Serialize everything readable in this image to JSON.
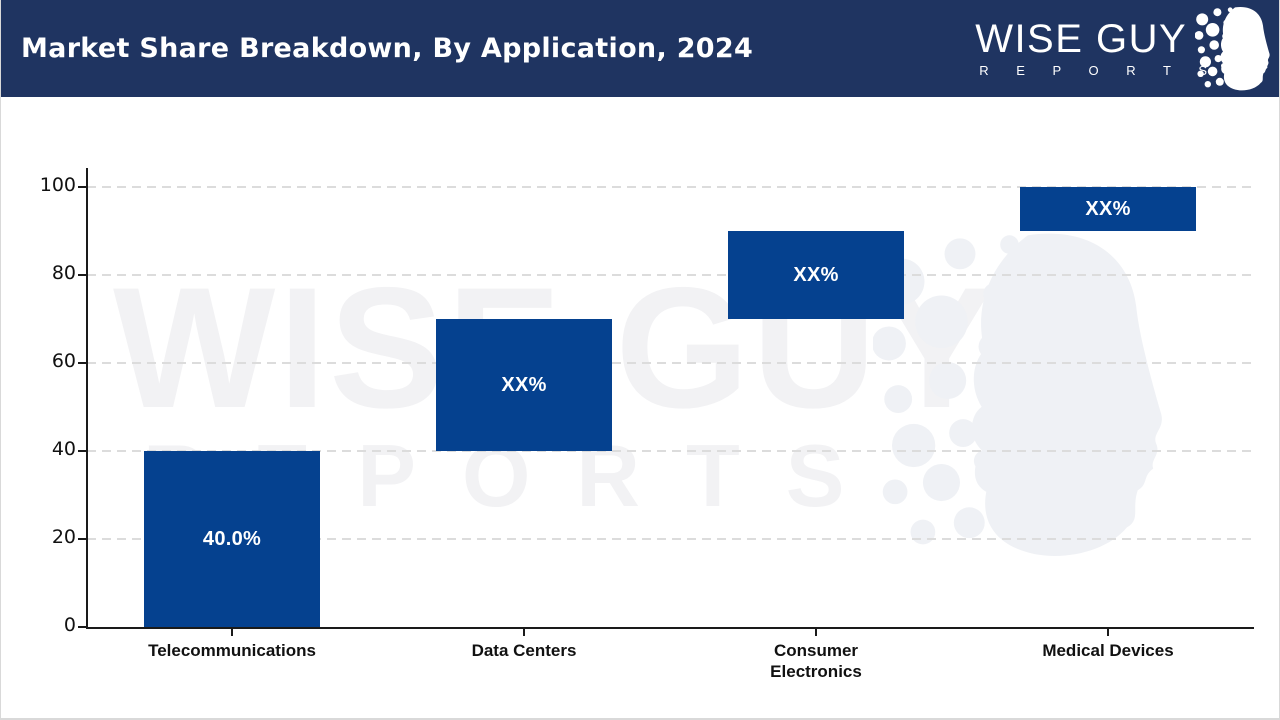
{
  "header": {
    "title": "Market Share Breakdown, By Application, 2024",
    "logo": {
      "name": "WISE GUY",
      "sub": "REPORTS"
    }
  },
  "watermark": {
    "line1": "WISE GUY",
    "line2": "REPORTS"
  },
  "colors": {
    "header_bg": "#1f3461",
    "bar": "#05418f",
    "grid": "#dcdcdc",
    "axis": "#1a1a1a",
    "watermark": "#f2f2f4",
    "watermark_face": "#eff1f5",
    "value_label": "#ffffff",
    "category_label": "#111111"
  },
  "chart_data": {
    "type": "bar",
    "subtype": "waterfall",
    "title": "Market Share Breakdown, By Application, 2024",
    "categories": [
      "Telecommunications",
      "Data Centers",
      "Consumer Electronics",
      "Medical Devices"
    ],
    "category_label_lines": [
      [
        "Telecommunications"
      ],
      [
        "Data Centers"
      ],
      [
        "Consumer",
        "Electronics"
      ],
      [
        "Medical Devices"
      ]
    ],
    "segments": [
      {
        "category": "Telecommunications",
        "start": 0,
        "end": 40,
        "value": 40,
        "label": "40.0%"
      },
      {
        "category": "Data Centers",
        "start": 40,
        "end": 70,
        "value": 30,
        "label": "XX%"
      },
      {
        "category": "Consumer Electronics",
        "start": 70,
        "end": 90,
        "value": 20,
        "label": "XX%"
      },
      {
        "category": "Medical Devices",
        "start": 90,
        "end": 100,
        "value": 10,
        "label": "XX%"
      }
    ],
    "ylim": [
      0,
      100
    ],
    "yticks": [
      0,
      20,
      40,
      60,
      80,
      100
    ],
    "xlabel": "",
    "ylabel": "",
    "grid": "dashed-horizontal",
    "legend": "none"
  }
}
